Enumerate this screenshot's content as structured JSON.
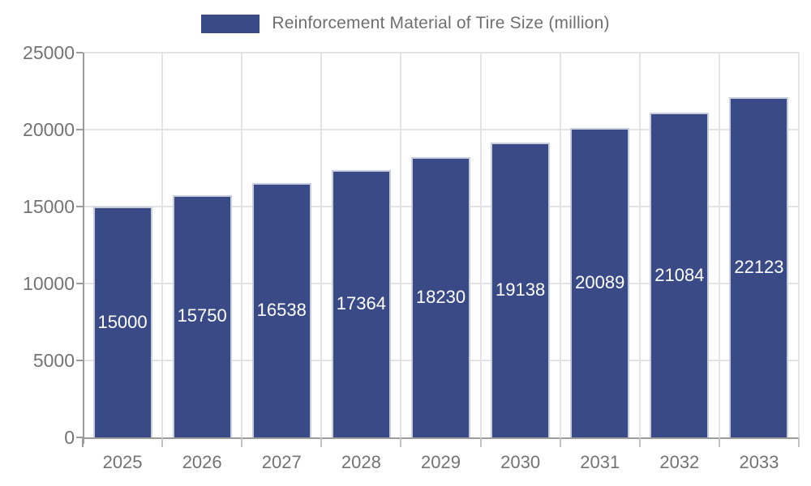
{
  "legend": {
    "label": "Reinforcement Material of Tire Size (million)"
  },
  "chart_data": {
    "type": "bar",
    "title": "Reinforcement Material of Tire Size (million)",
    "categories": [
      "2025",
      "2026",
      "2027",
      "2028",
      "2029",
      "2030",
      "2031",
      "2032",
      "2033"
    ],
    "values": [
      15000,
      15750,
      16538,
      17364,
      18230,
      19138,
      20089,
      21084,
      22123
    ],
    "xlabel": "",
    "ylabel": "",
    "ylim": [
      0,
      25000
    ],
    "yticks": [
      0,
      5000,
      10000,
      15000,
      20000,
      25000
    ],
    "grid": true,
    "legend_position": "top",
    "bar_labels_visible": true
  },
  "colors": {
    "bar_fill": "#3a4a86",
    "bar_border": "#c9cedd",
    "bar_label_text": "#ffffff",
    "axis_line": "#9c9c9c",
    "gridline": "#e3e3e6",
    "tick_mark_minor": "#c2c2c2",
    "axis_text": "#737373",
    "legend_text": "#6f6f6f",
    "background": "#ffffff"
  }
}
